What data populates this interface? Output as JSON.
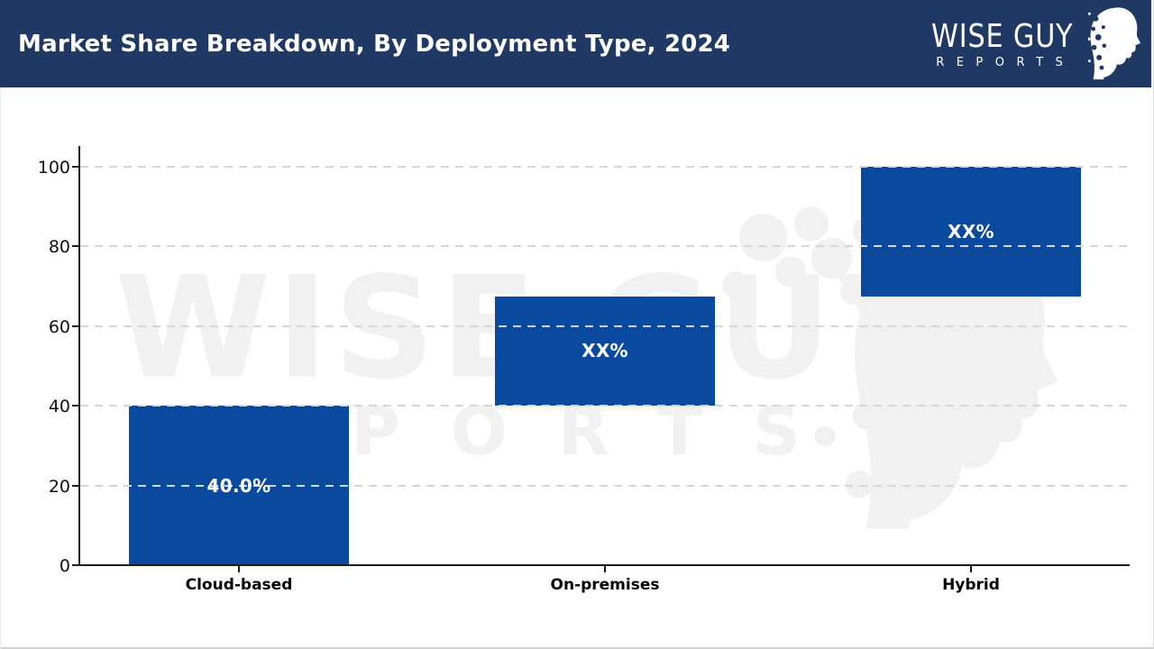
{
  "page": {
    "bg": "#ffffff",
    "border_color": "#dcdcdc"
  },
  "header": {
    "bg_color": "#203864",
    "title": "Market Share Breakdown, By Deployment Type, 2024",
    "logo": {
      "line1": "WISE GUY",
      "line2": "REPORTS"
    }
  },
  "watermark": {
    "line1": "WISE GUY",
    "line2": "REPORTS"
  },
  "chart_data": {
    "type": "bar",
    "variant": "floating-segment-breakdown",
    "title": "Market Share Breakdown, By Deployment Type, 2024",
    "categories": [
      "Cloud-based",
      "On-premises",
      "Hybrid"
    ],
    "segments": [
      {
        "category": "Cloud-based",
        "start": 0,
        "end": 40,
        "label": "40.0%"
      },
      {
        "category": "On-premises",
        "start": 40,
        "end": 67.5,
        "label": "XX%"
      },
      {
        "category": "Hybrid",
        "start": 67.5,
        "end": 100,
        "label": "XX%"
      }
    ],
    "y_ticks": [
      0,
      20,
      40,
      60,
      80,
      100
    ],
    "ylim": [
      0,
      105
    ],
    "xlabel": "",
    "ylabel": "",
    "grid": {
      "axis": "y",
      "style": "dashed",
      "color": "#d6d6d6"
    },
    "legend": "none",
    "bar_color": "#0A4A9E",
    "bar_label_color": "#ffffff",
    "axis_color": "#1c1c1c"
  }
}
